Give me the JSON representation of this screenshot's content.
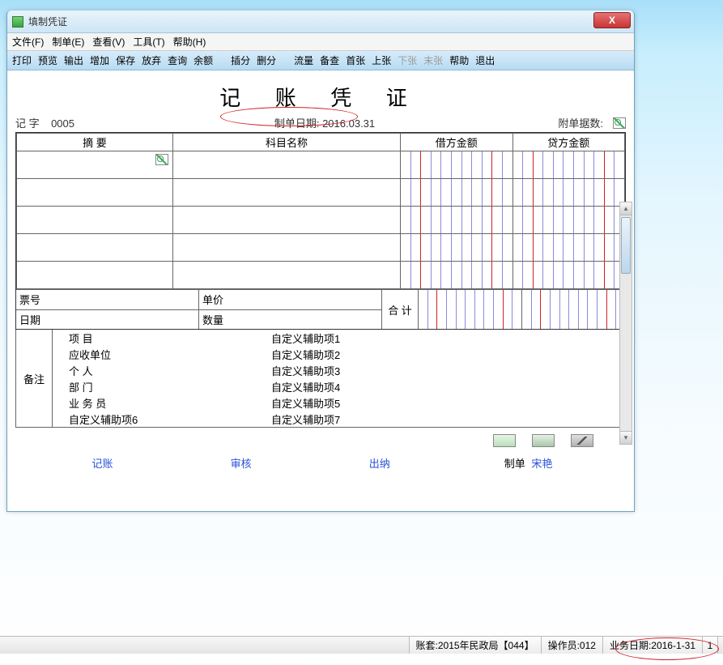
{
  "window": {
    "title": "填制凭证",
    "close": "X"
  },
  "menubar": [
    "文件(F)",
    "制单(E)",
    "查看(V)",
    "工具(T)",
    "帮助(H)"
  ],
  "toolbar": [
    {
      "label": "打印",
      "disabled": false
    },
    {
      "label": "预览",
      "disabled": false
    },
    {
      "label": "输出",
      "disabled": false
    },
    {
      "label": "增加",
      "disabled": false
    },
    {
      "label": "保存",
      "disabled": false
    },
    {
      "label": "放弃",
      "disabled": false
    },
    {
      "label": "查询",
      "disabled": false
    },
    {
      "label": "余额",
      "disabled": false
    },
    {
      "label": "插分",
      "disabled": false
    },
    {
      "label": "删分",
      "disabled": false
    },
    {
      "label": "流量",
      "disabled": false
    },
    {
      "label": "备查",
      "disabled": false
    },
    {
      "label": "首张",
      "disabled": false
    },
    {
      "label": "上张",
      "disabled": false
    },
    {
      "label": "下张",
      "disabled": true
    },
    {
      "label": "末张",
      "disabled": true
    },
    {
      "label": "帮助",
      "disabled": false
    },
    {
      "label": "退出",
      "disabled": false
    }
  ],
  "doc": {
    "title": "记 账 凭 证",
    "word_label": "记  字",
    "number": "0005",
    "date_label": "制单日期:",
    "date_value": "2016.03.31",
    "attach_label": "附单据数:",
    "attach_value": ""
  },
  "columns": {
    "summary": "摘 要",
    "subject": "科目名称",
    "debit": "借方金额",
    "credit": "贷方金额"
  },
  "sub": {
    "ticket": "票号",
    "price": "单价",
    "date": "日期",
    "qty": "数量",
    "total": "合 计"
  },
  "aux": {
    "label": "备注",
    "left": [
      "项   目",
      "应收单位",
      "个   人",
      "部   门",
      "业 务 员",
      "自定义辅助项6"
    ],
    "right": [
      "自定义辅助项1",
      "自定义辅助项2",
      "自定义辅助项3",
      "自定义辅助项4",
      "自定义辅助项5",
      "自定义辅助项7"
    ]
  },
  "signoff": {
    "book": "记账",
    "audit": "审核",
    "cashier": "出纳",
    "maker_label": "制单",
    "maker_value": "宋艳"
  },
  "statusbar": {
    "account": "账套:2015年民政局【044】",
    "operator": "操作员:012",
    "bizdate": "业务日期:2016-1-31",
    "extra": "1"
  },
  "colors": {
    "red": "#d02028",
    "blue_line": "#8a8ae0",
    "accent_blue": "#2851d8"
  }
}
